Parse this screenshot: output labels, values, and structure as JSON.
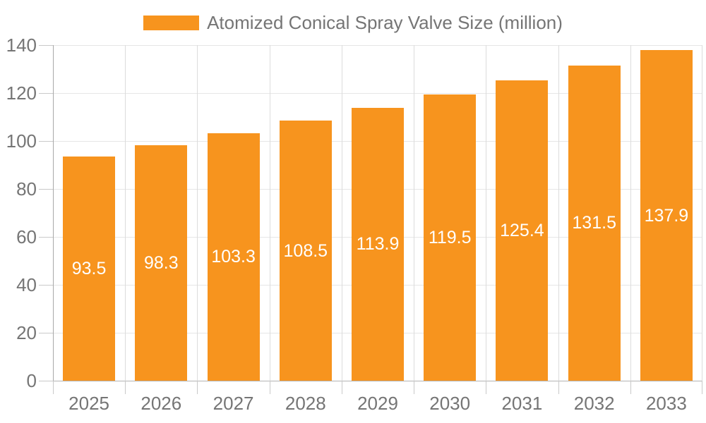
{
  "legend": {
    "label": "Atomized Conical Spray Valve Size (million)"
  },
  "colors": {
    "bar": "#f7941e",
    "bar_label": "#ffffff",
    "axis_text": "#757575",
    "grid_h": "#e6e6e6",
    "grid_v": "#dcdcdc",
    "tick": "#c9c9c9",
    "axis_x": "#b3b3b3",
    "axis_y": "#a8a8a8",
    "background": "#ffffff"
  },
  "chart_data": {
    "type": "bar",
    "title": "Atomized Conical Spray Valve Size (million)",
    "categories": [
      "2025",
      "2026",
      "2027",
      "2028",
      "2029",
      "2030",
      "2031",
      "2032",
      "2033"
    ],
    "series": [
      {
        "name": "Atomized Conical Spray Valve Size (million)",
        "values": [
          93.5,
          98.3,
          103.3,
          108.5,
          113.9,
          119.5,
          125.4,
          131.5,
          137.9
        ]
      }
    ],
    "values": [
      93.5,
      98.3,
      103.3,
      108.5,
      113.9,
      119.5,
      125.4,
      131.5,
      137.9
    ],
    "bar_labels": [
      "93.5",
      "98.3",
      "103.3",
      "108.5",
      "113.9",
      "119.5",
      "125.4",
      "131.5",
      "137.9"
    ],
    "xlabel": "",
    "ylabel": "",
    "ylim": [
      0,
      140
    ],
    "yticks": [
      0,
      20,
      40,
      60,
      80,
      100,
      120,
      140
    ],
    "grid": true,
    "legend_position": "top",
    "bar_label_position": "middle"
  }
}
